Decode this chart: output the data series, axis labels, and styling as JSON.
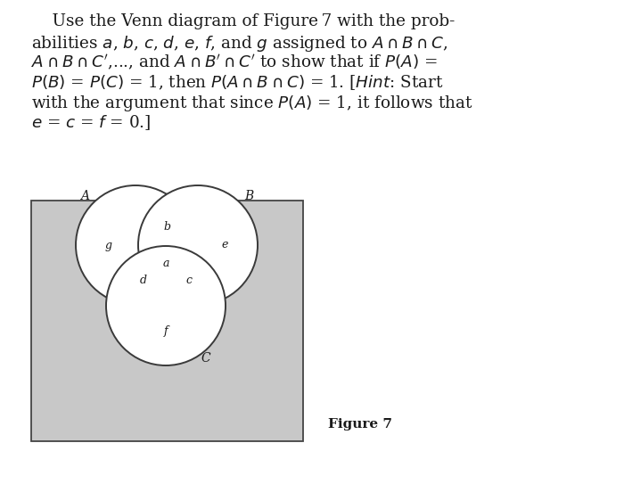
{
  "fig_width": 7.0,
  "fig_height": 5.43,
  "dpi": 100,
  "background_color": "#ffffff",
  "box_bg_color": "#c8c8c8",
  "circle_fill_color": "#ffffff",
  "circle_edge_color": "#3a3a3a",
  "circle_linewidth": 1.4,
  "label_A": "A",
  "label_B": "B",
  "label_C": "C",
  "label_a": "a",
  "label_b": "b",
  "label_c": "c",
  "label_d": "d",
  "label_e": "e",
  "label_f": "f",
  "label_g": "g",
  "figure_label": "Figure 7",
  "text_color": "#1a1a1a",
  "label_fontsize": 10,
  "region_fontsize": 9,
  "caption_fontsize": 11
}
